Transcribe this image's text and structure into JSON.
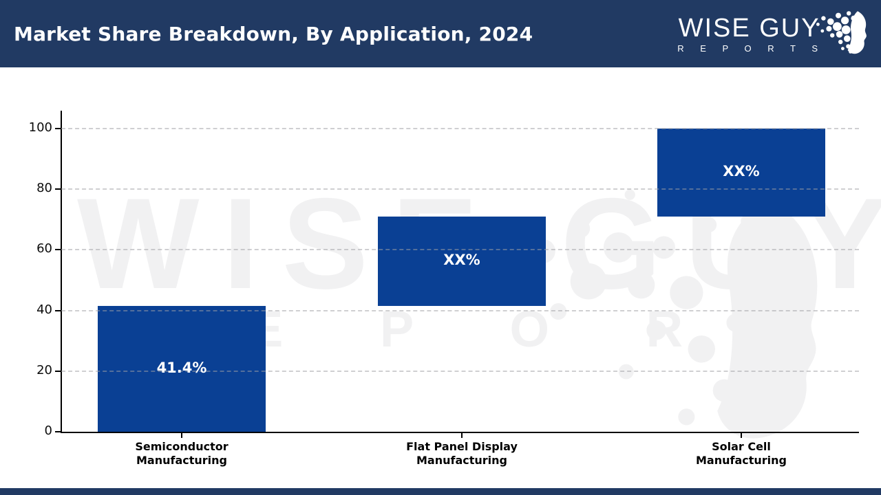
{
  "header": {
    "title": "Market Share Breakdown, By Application, 2024",
    "bg_color": "#213a63",
    "logo": {
      "line1": "WISE GUY",
      "line2": "R E P O R T S"
    }
  },
  "watermark": {
    "line1": "WISE GUY",
    "line2": "R E P O R T S"
  },
  "chart_data": {
    "type": "bar",
    "variant": "stacked-waterfall",
    "title": "Market Share Breakdown, By Application, 2024",
    "categories": [
      "Semiconductor Manufacturing",
      "Flat Panel Display Manufacturing",
      "Solar Cell Manufacturing"
    ],
    "bars": [
      {
        "category_lines": [
          "Semiconductor",
          "Manufacturing"
        ],
        "label": "41.4%",
        "from": 0,
        "to": 41.4
      },
      {
        "category_lines": [
          "Flat Panel Display",
          "Manufacturing"
        ],
        "label": "XX%",
        "from": 41.4,
        "to": 71
      },
      {
        "category_lines": [
          "Solar Cell",
          "Manufacturing"
        ],
        "label": "XX%",
        "from": 71,
        "to": 100
      }
    ],
    "y_ticks": [
      0,
      20,
      40,
      60,
      80,
      100
    ],
    "ylim": [
      0,
      105
    ],
    "grid": true,
    "gridline_style": "dashed",
    "bar_color": "#0a4094",
    "bar_label_color": "#ffffff",
    "axis_color": "#000000",
    "legend": null
  },
  "colors": {
    "header_bg": "#213a63",
    "footer_bg": "#213a63",
    "bar_blue": "#0a4094",
    "watermark_gray": "#f1f1f2"
  }
}
